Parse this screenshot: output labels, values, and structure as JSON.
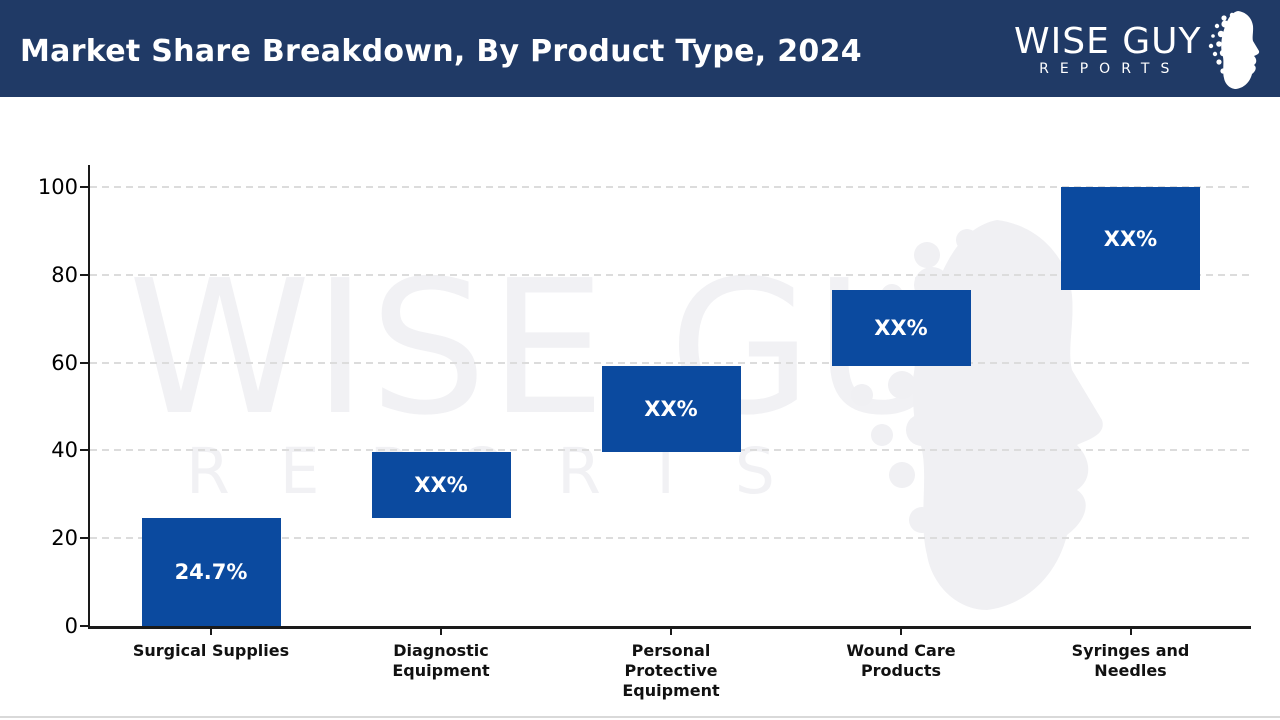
{
  "header": {
    "title": "Market Share Breakdown, By Product Type, 2024",
    "logo": {
      "brand": "WISE GUY",
      "sub": "REPORTS"
    }
  },
  "watermark": {
    "line1": "WISE GUY",
    "line2": "REPORTS"
  },
  "chart_data": {
    "type": "bar",
    "subtype": "waterfall",
    "title": "Market Share Breakdown, By Product Type, 2024",
    "xlabel": "",
    "ylabel": "",
    "ylim": [
      0,
      104
    ],
    "yticks": [
      0,
      20,
      40,
      60,
      80,
      100
    ],
    "grid": "horizontal-dashed",
    "legend": "none",
    "bar_color": "#0B4A9F",
    "value_label_color": "#ffffff",
    "categories": [
      "Surgical Supplies",
      "Diagnostic Equipment",
      "Personal Protective Equipment",
      "Wound Care Products",
      "Syringes and Needles"
    ],
    "segments": [
      {
        "category": "Surgical Supplies",
        "tick_label": "Surgical Supplies",
        "start": 0,
        "end": 24.7,
        "value": 24.7,
        "label": "24.7%"
      },
      {
        "category": "Diagnostic Equipment",
        "tick_label": "Diagnostic\nEquipment",
        "start": 24.7,
        "end": 39.6,
        "value": 14.9,
        "label": "XX%"
      },
      {
        "category": "Personal Protective Equipment",
        "tick_label": "Personal\nProtective\nEquipment",
        "start": 39.6,
        "end": 59.3,
        "value": 19.7,
        "label": "XX%"
      },
      {
        "category": "Wound Care Products",
        "tick_label": "Wound Care\nProducts",
        "start": 59.3,
        "end": 76.5,
        "value": 17.2,
        "label": "XX%"
      },
      {
        "category": "Syringes and Needles",
        "tick_label": "Syringes and\nNeedles",
        "start": 76.5,
        "end": 100,
        "value": 23.5,
        "label": "XX%"
      }
    ]
  },
  "colors": {
    "header_bg": "#203A66",
    "bar": "#0B4A9F",
    "grid": "#DCDCDC",
    "axis": "#1A1A1A",
    "watermark": "#F1F1F4"
  }
}
